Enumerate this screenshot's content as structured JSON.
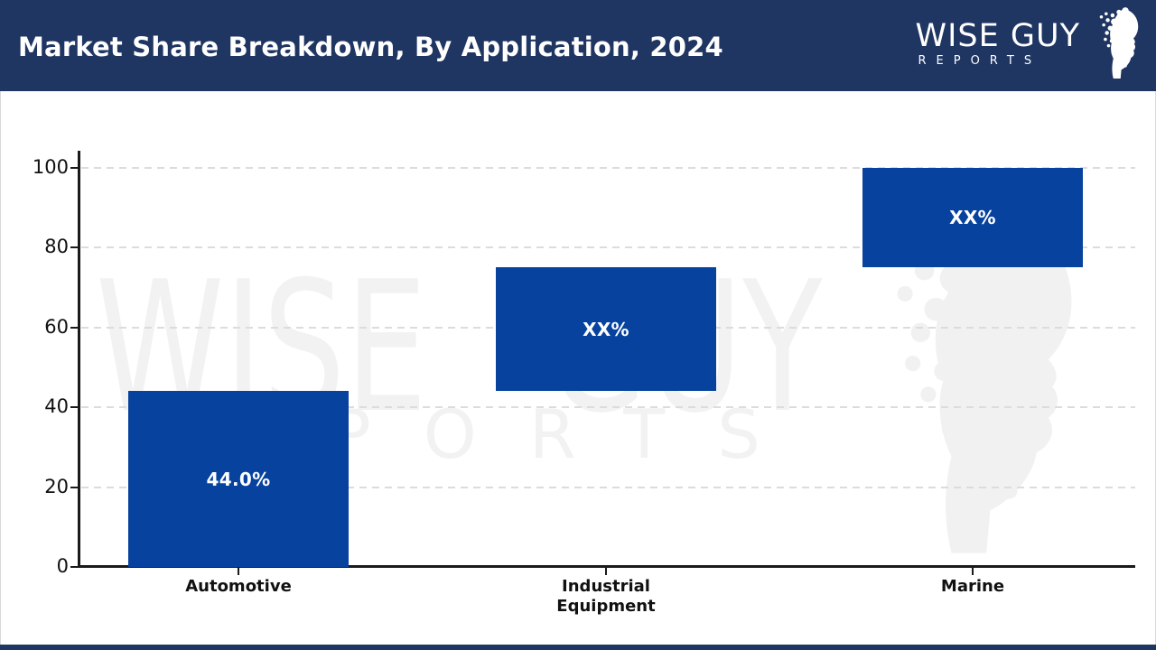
{
  "header": {
    "title": "Market Share Breakdown, By Application, 2024",
    "logo": {
      "name": "WISE GUY",
      "sub": "REPORTS"
    }
  },
  "watermark": {
    "line1": "WISE GUY",
    "line2": "REPORTS"
  },
  "chart_data": {
    "type": "bar",
    "subtype": "waterfall",
    "title": "Market Share Breakdown, By Application, 2024",
    "categories": [
      "Automotive",
      "Industrial Equipment",
      "Marine"
    ],
    "series": [
      {
        "name": "Market Share",
        "segments": [
          {
            "category": "Automotive",
            "start": 0,
            "end": 44,
            "label": "44.0%"
          },
          {
            "category": "Industrial Equipment",
            "start": 44,
            "end": 75,
            "label": "XX%"
          },
          {
            "category": "Marine",
            "start": 75,
            "end": 100,
            "label": "XX%"
          }
        ]
      }
    ],
    "xlabel": "",
    "ylabel": "",
    "ylim": [
      0,
      100
    ],
    "yticks": [
      0,
      20,
      40,
      60,
      80,
      100
    ],
    "grid": "horizontal-dashed",
    "legend": "none"
  },
  "colors": {
    "header_bg": "#1f3562",
    "footer_bg": "#1f3562",
    "bar": "#06429e",
    "bar_label": "#ffffff",
    "axis": "#1a1a1a",
    "gridline": "#dcdcdc",
    "watermark": "#f2f2f2"
  }
}
